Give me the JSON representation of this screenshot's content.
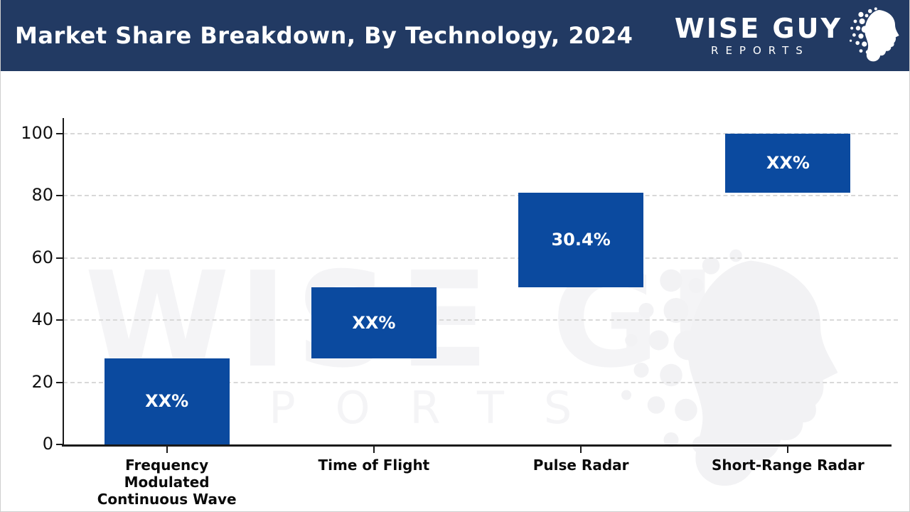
{
  "header": {
    "title": "Market Share Breakdown, By Technology, 2024",
    "logo": {
      "name": "WISE GUY",
      "subtitle": "REPORTS"
    }
  },
  "watermark": {
    "line1": "WISE GU",
    "line2": "REPORTS"
  },
  "colors": {
    "header_bg": "#223A63",
    "bar_blue": "#0B4A9F",
    "grid": "#D8D8D8",
    "axis": "#1A1A1A",
    "bar_label": "#FFFFFF",
    "watermark": "#F4F4F6"
  },
  "chart_data": {
    "type": "bar",
    "subtype": "floating-waterfall",
    "title": "Market Share Breakdown, By Technology, 2024",
    "xlabel": "",
    "ylabel": "",
    "categories": [
      "Frequency\nModulated\nContinuous Wave",
      "Time of Flight",
      "Pulse Radar",
      "Short-Range Radar"
    ],
    "segments": [
      {
        "category": "Frequency Modulated Continuous Wave",
        "start": 0,
        "end": 27.7,
        "share": "masked",
        "label": "XX%"
      },
      {
        "category": "Time of Flight",
        "start": 27.7,
        "end": 50.6,
        "share": "masked",
        "label": "XX%"
      },
      {
        "category": "Pulse Radar",
        "start": 50.6,
        "end": 81.0,
        "share": 30.4,
        "label": "30.4%"
      },
      {
        "category": "Short-Range Radar",
        "start": 81.0,
        "end": 100.0,
        "share": "masked",
        "label": "XX%"
      }
    ],
    "yticks": [
      0,
      20,
      40,
      60,
      80,
      100
    ],
    "ylim": [
      0,
      105
    ],
    "grid": "dashed-horizontal",
    "legend": "none",
    "bar_color": "#0B4A9F",
    "label_color": "#FFFFFF"
  }
}
